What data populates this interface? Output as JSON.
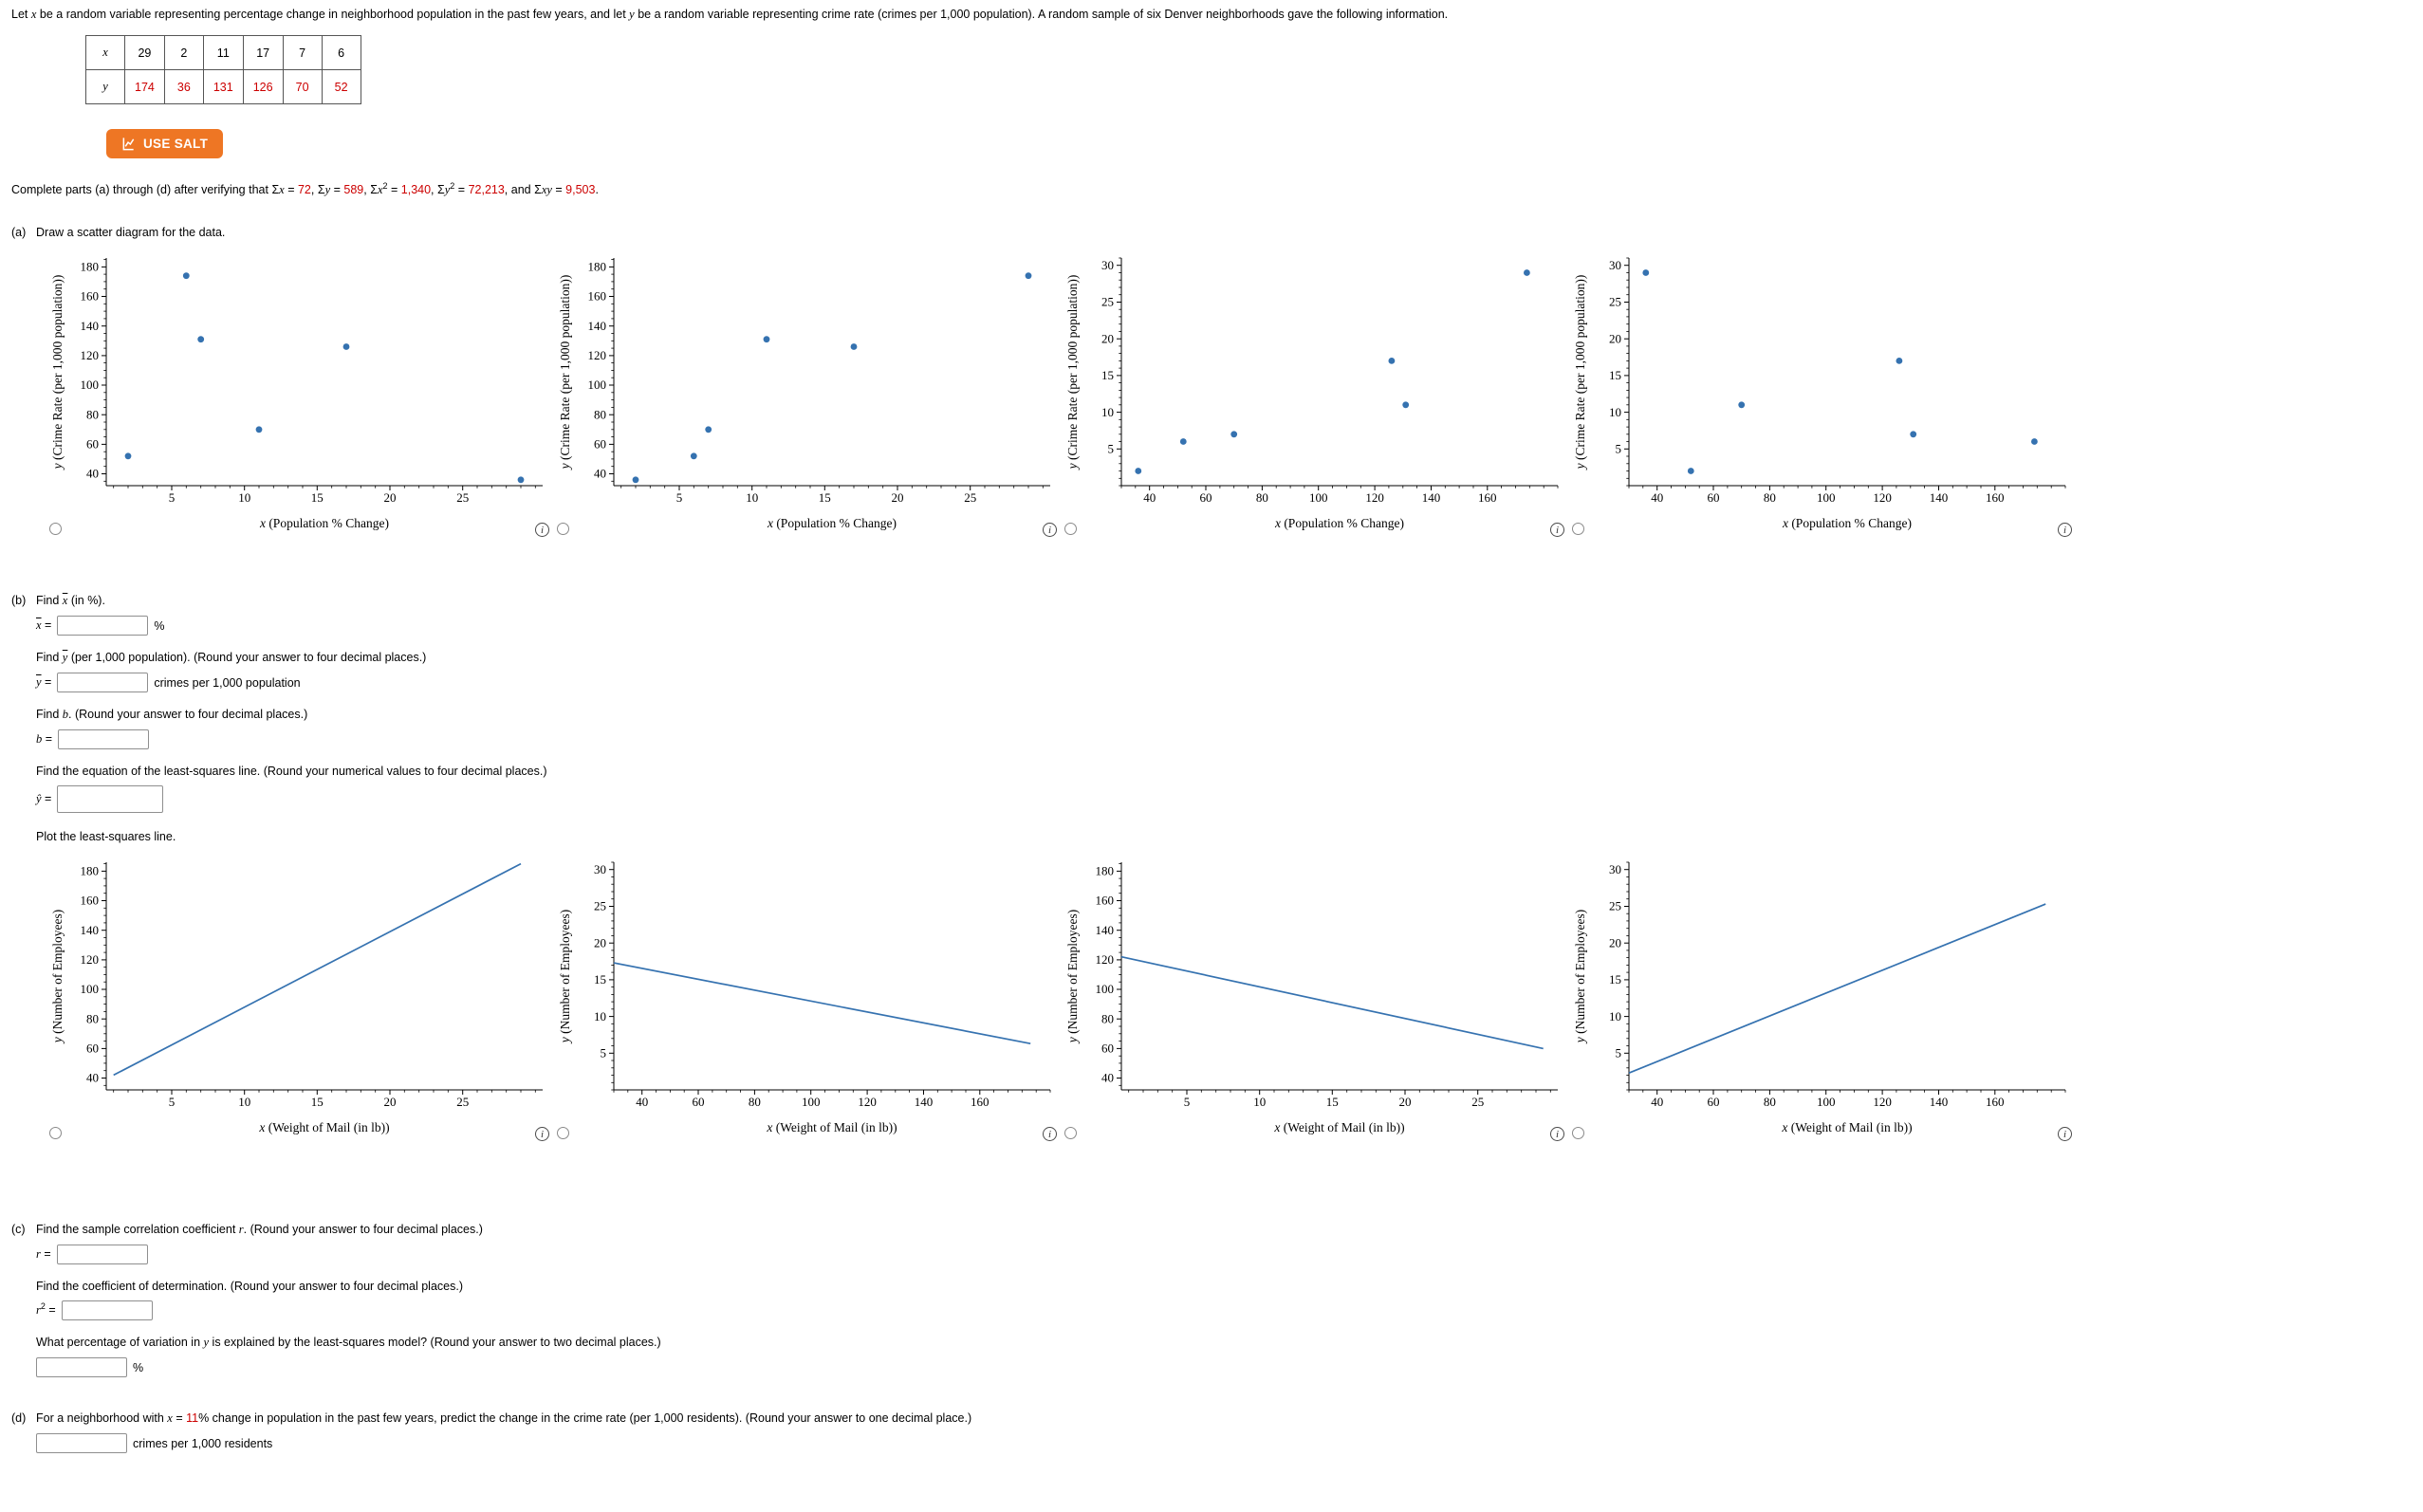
{
  "colors": {
    "accent_orange": "#ee7624",
    "highlight_red": "#cc0000",
    "chart_blue": "#3572b0",
    "axis_black": "#000000"
  },
  "info_glyph": "i",
  "intro": {
    "pre": "Let ",
    "x_var": "x",
    "mid": " be a random variable representing percentage change in neighborhood population in the past few years, and let ",
    "y_var": "y",
    "post": " be a random variable representing crime rate (crimes per 1,000 population). A random sample of six Denver neighborhoods gave the following information."
  },
  "data_table": {
    "rows": [
      {
        "header": "x",
        "values": [
          "29",
          "2",
          "11",
          "17",
          "7",
          "6"
        ]
      },
      {
        "header": "y",
        "values": [
          "174",
          "36",
          "131",
          "126",
          "70",
          "52"
        ]
      }
    ]
  },
  "salt": {
    "label": "USE SALT"
  },
  "verify": {
    "pre": "Complete parts (a) through (d) after verifying that ",
    "terms": [
      {
        "prefix": "Σ",
        "var": "x",
        "sup": "",
        "mid": " = ",
        "val": "72",
        "suffix": ", "
      },
      {
        "prefix": "Σ",
        "var": "y",
        "sup": "",
        "mid": " = ",
        "val": "589",
        "suffix": ", "
      },
      {
        "prefix": "Σ",
        "var": "x",
        "sup": "2",
        "mid": " = ",
        "val": "1,340",
        "suffix": ", "
      },
      {
        "prefix": "Σ",
        "var": "y",
        "sup": "2",
        "mid": " = ",
        "val": "72,213",
        "suffix": ", and "
      },
      {
        "prefix": "Σ",
        "var": "xy",
        "sup": "",
        "mid": " = ",
        "val": "9,503",
        "suffix": "."
      }
    ]
  },
  "part_a": {
    "label": "(a)",
    "prompt": "Draw a scatter diagram for the data."
  },
  "part_b": {
    "label": "(b)",
    "q1_pre": "Find ",
    "q1_var": "x",
    "q1_post": " (in %).",
    "a1_var": "x",
    "a1_eq": " = ",
    "a1_unit": "%",
    "q2_pre": "Find ",
    "q2_var": "y",
    "q2_post": " (per 1,000 population). (Round your answer to four decimal places.)",
    "a2_var": "y",
    "a2_eq": " = ",
    "a2_unit": "crimes per 1,000 population",
    "q3_pre": "Find ",
    "q3_var": "b",
    "q3_post": ". (Round your answer to four decimal places.)",
    "a3_var": "b",
    "a3_eq": " = ",
    "q4": "Find the equation of the least-squares line. (Round your numerical values to four decimal places.)",
    "a4_var": "ŷ",
    "a4_eq": " = ",
    "q5": "Plot the least-squares line."
  },
  "part_c": {
    "label": "(c)",
    "q1_pre": "Find the sample correlation coefficient ",
    "q1_var": "r",
    "q1_post": ". (Round your answer to four decimal places.)",
    "a1_var": "r",
    "a1_eq": " = ",
    "q2": "Find the coefficient of determination. (Round your answer to four decimal places.)",
    "a2_var": "r",
    "a2_sup": "2",
    "a2_eq": " = ",
    "q3_pre": "What percentage of variation in ",
    "q3_var": "y",
    "q3_post": " is explained by the least-squares model? (Round your answer to two decimal places.)",
    "a3_unit": "%"
  },
  "part_d": {
    "label": "(d)",
    "q_pre": "For a neighborhood with ",
    "q_var": "x",
    "q_eq": " = ",
    "q_val": "11",
    "q_post": "% change in population in the past few years, predict the change in the crime rate (per 1,000 residents). (Round your answer to one decimal place.)",
    "a_unit": "crimes per 1,000 residents"
  },
  "chart_data": {
    "scatter_options": [
      {
        "type": "scatter",
        "xlabel": {
          "var": "x",
          "rest": " (Population % Change)"
        },
        "ylabel": {
          "var": "y",
          "rest": " (Crime Rate (per 1,000 population))"
        },
        "xlim": [
          0.5,
          30.5
        ],
        "ylim": [
          32,
          186
        ],
        "xticks": [
          5,
          10,
          15,
          20,
          25
        ],
        "yticks": [
          40,
          60,
          80,
          100,
          120,
          140,
          160,
          180
        ],
        "xminor": 1,
        "yminor": 5,
        "points": [
          [
            2,
            52
          ],
          [
            6,
            174
          ],
          [
            7,
            131
          ],
          [
            11,
            70
          ],
          [
            17,
            126
          ],
          [
            29,
            36
          ]
        ]
      },
      {
        "type": "scatter",
        "xlabel": {
          "var": "x",
          "rest": " (Population % Change)"
        },
        "ylabel": {
          "var": "y",
          "rest": " (Crime Rate (per 1,000 population))"
        },
        "xlim": [
          0.5,
          30.5
        ],
        "ylim": [
          32,
          186
        ],
        "xticks": [
          5,
          10,
          15,
          20,
          25
        ],
        "yticks": [
          40,
          60,
          80,
          100,
          120,
          140,
          160,
          180
        ],
        "xminor": 1,
        "yminor": 5,
        "points": [
          [
            2,
            36
          ],
          [
            6,
            52
          ],
          [
            7,
            70
          ],
          [
            11,
            131
          ],
          [
            17,
            126
          ],
          [
            29,
            174
          ]
        ]
      },
      {
        "type": "scatter",
        "xlabel": {
          "var": "x",
          "rest": " (Population % Change)"
        },
        "ylabel": {
          "var": "y",
          "rest": " (Crime Rate (per 1,000 population))"
        },
        "xlim": [
          30,
          185
        ],
        "ylim": [
          0,
          31
        ],
        "xticks": [
          40,
          60,
          80,
          100,
          120,
          140,
          160
        ],
        "yticks": [
          5,
          10,
          15,
          20,
          25,
          30
        ],
        "xminor": 5,
        "yminor": 1,
        "points": [
          [
            36,
            2
          ],
          [
            52,
            6
          ],
          [
            70,
            7
          ],
          [
            126,
            17
          ],
          [
            131,
            11
          ],
          [
            174,
            29
          ]
        ]
      },
      {
        "type": "scatter",
        "xlabel": {
          "var": "x",
          "rest": " (Population % Change)"
        },
        "ylabel": {
          "var": "y",
          "rest": " (Crime Rate (per 1,000 population))"
        },
        "xlim": [
          30,
          185
        ],
        "ylim": [
          0,
          31
        ],
        "xticks": [
          40,
          60,
          80,
          100,
          120,
          140,
          160
        ],
        "yticks": [
          5,
          10,
          15,
          20,
          25,
          30
        ],
        "xminor": 5,
        "yminor": 1,
        "points": [
          [
            36,
            29
          ],
          [
            52,
            2
          ],
          [
            70,
            11
          ],
          [
            126,
            17
          ],
          [
            131,
            7
          ],
          [
            174,
            6
          ]
        ]
      }
    ],
    "line_options": [
      {
        "type": "line",
        "xlabel": {
          "var": "x",
          "rest": " (Weight of Mail (in lb))"
        },
        "ylabel": {
          "var": "y",
          "rest": " (Number of Employees)"
        },
        "xlim": [
          0.5,
          30.5
        ],
        "ylim": [
          32,
          186
        ],
        "xticks": [
          5,
          10,
          15,
          20,
          25
        ],
        "yticks": [
          40,
          60,
          80,
          100,
          120,
          140,
          160,
          180
        ],
        "xminor": 1,
        "yminor": 5,
        "line": [
          [
            1,
            42
          ],
          [
            29,
            185
          ]
        ]
      },
      {
        "type": "line",
        "xlabel": {
          "var": "x",
          "rest": " (Weight of Mail (in lb))"
        },
        "ylabel": {
          "var": "y",
          "rest": " (Number of Employees)"
        },
        "xlim": [
          30,
          185
        ],
        "ylim": [
          0,
          31
        ],
        "xticks": [
          40,
          60,
          80,
          100,
          120,
          140,
          160
        ],
        "yticks": [
          5,
          10,
          15,
          20,
          25,
          30
        ],
        "xminor": 5,
        "yminor": 1,
        "line": [
          [
            30,
            17.3
          ],
          [
            178,
            6.3
          ]
        ]
      },
      {
        "type": "line",
        "xlabel": {
          "var": "x",
          "rest": " (Weight of Mail (in lb))"
        },
        "ylabel": {
          "var": "y",
          "rest": " (Number of Employees)"
        },
        "xlim": [
          0.5,
          30.5
        ],
        "ylim": [
          32,
          186
        ],
        "xticks": [
          5,
          10,
          15,
          20,
          25
        ],
        "yticks": [
          40,
          60,
          80,
          100,
          120,
          140,
          160,
          180
        ],
        "xminor": 1,
        "yminor": 5,
        "line": [
          [
            0.5,
            122
          ],
          [
            29.5,
            60
          ]
        ]
      },
      {
        "type": "line",
        "xlabel": {
          "var": "x",
          "rest": " (Weight of Mail (in lb))"
        },
        "ylabel": {
          "var": "y",
          "rest": " (Number of Employees)"
        },
        "xlim": [
          30,
          185
        ],
        "ylim": [
          0,
          31
        ],
        "xticks": [
          40,
          60,
          80,
          100,
          120,
          140,
          160
        ],
        "yticks": [
          5,
          10,
          15,
          20,
          25,
          30
        ],
        "xminor": 5,
        "yminor": 1,
        "line": [
          [
            30,
            2.3
          ],
          [
            178,
            25.3
          ]
        ]
      }
    ]
  }
}
